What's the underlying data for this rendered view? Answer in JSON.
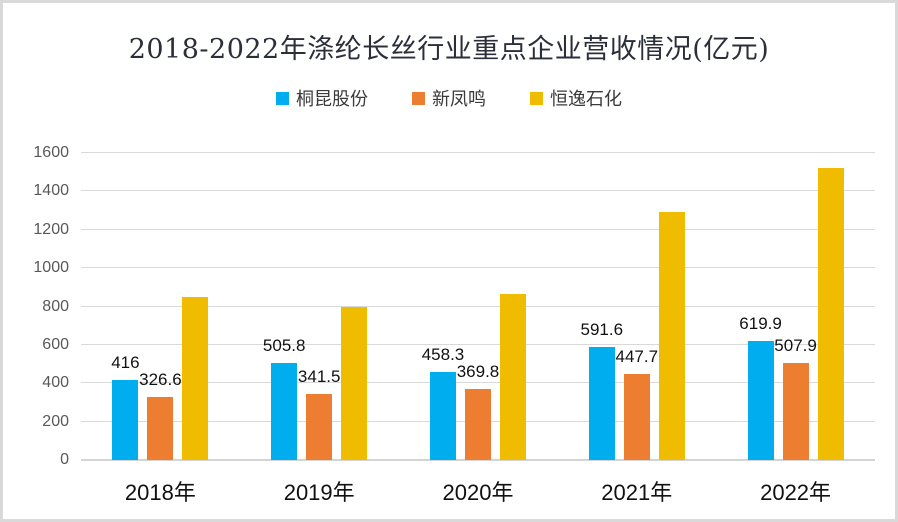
{
  "frame": {
    "background": "#ffffff",
    "border_color": "#d9d9d9"
  },
  "chart_data": {
    "type": "bar",
    "title": "2018-2022年涤纶长丝行业重点企业营收情况(亿元)",
    "title_color": "#2b2f3a",
    "categories": [
      "2018年",
      "2019年",
      "2020年",
      "2021年",
      "2022年"
    ],
    "series": [
      {
        "name": "桐昆股份",
        "color": "#00AEEF",
        "values": [
          416,
          505.8,
          458.3,
          591.6,
          619.9
        ],
        "value_labels_visible": true
      },
      {
        "name": "新凤鸣",
        "color": "#ED7D31",
        "values": [
          326.6,
          341.5,
          369.8,
          447.7,
          507.9
        ],
        "value_labels_visible": true
      },
      {
        "name": "恒逸石化",
        "color": "#F0BC00",
        "values": [
          850,
          795,
          865,
          1290,
          1520
        ],
        "value_labels_visible": false,
        "values_estimated_from_gridlines": true
      }
    ],
    "xlabel": "",
    "ylabel": "",
    "ylim": [
      0,
      1600
    ],
    "ytick_step": 200,
    "yticks": [
      "0",
      "200",
      "400",
      "600",
      "800",
      "1000",
      "1200",
      "1400",
      "1600"
    ],
    "grid": "horizontal",
    "gridline_color": "#d9d9d9",
    "axis_line_color": "#d4d4d4",
    "y_tick_color": "#595959",
    "x_tick_color": "#111111",
    "data_label_color": "#111111",
    "legend_position": "top"
  }
}
